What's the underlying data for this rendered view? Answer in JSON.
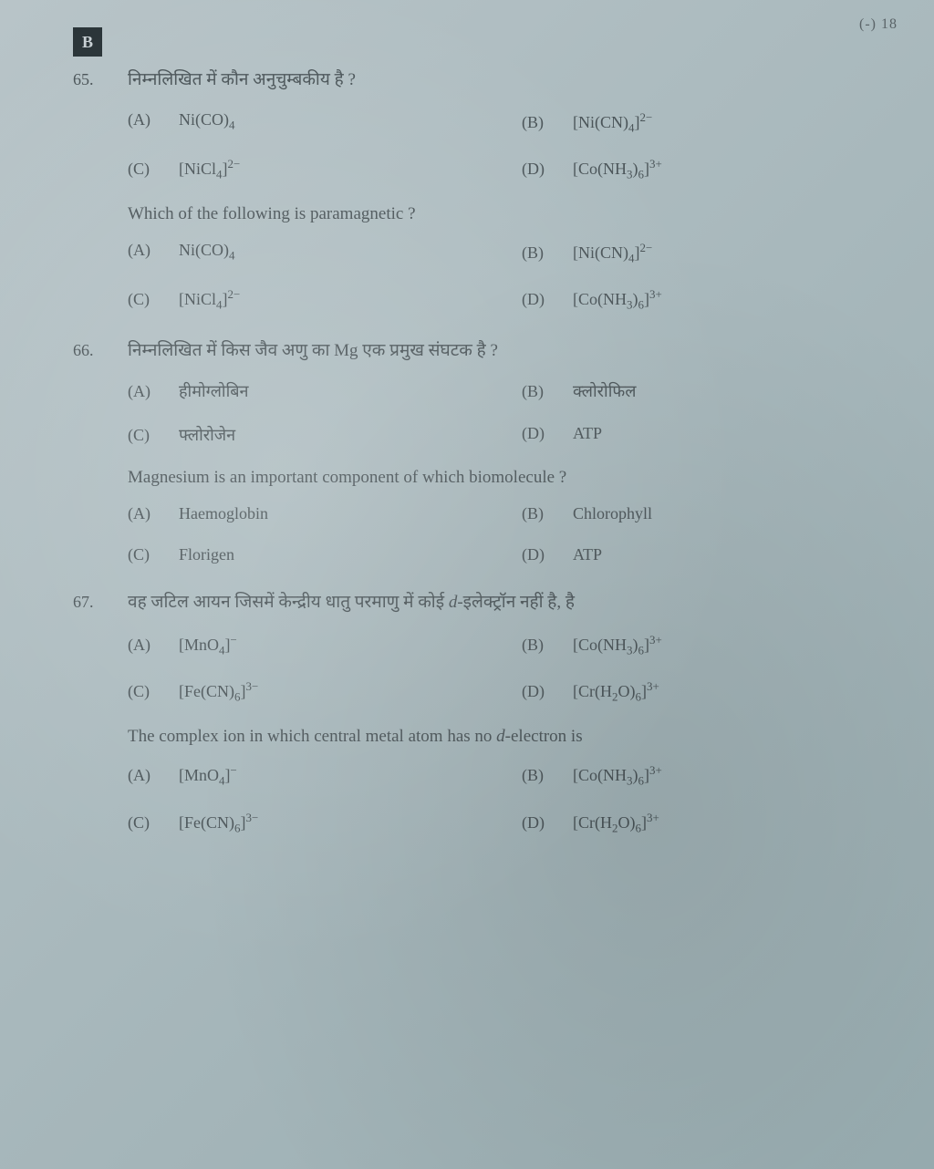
{
  "page_number": "(-) 18",
  "badge": "B",
  "questions": [
    {
      "num": "65.",
      "text_hi": "निम्नलिखित में कौन अनुचुम्बकीय है ?",
      "options_set1": [
        {
          "label": "(A)",
          "html": "Ni(CO)<sub>4</sub>"
        },
        {
          "label": "(B)",
          "html": "[Ni(CN)<sub>4</sub>]<sup>2−</sup>"
        },
        {
          "label": "(C)",
          "html": "[NiCl<sub>4</sub>]<sup>2−</sup>"
        },
        {
          "label": "(D)",
          "html": "[Co(NH<sub>3</sub>)<sub>6</sub>]<sup>3+</sup>"
        }
      ],
      "text_en": "Which of the following is paramagnetic ?",
      "options_set2": [
        {
          "label": "(A)",
          "html": "Ni(CO)<sub>4</sub>"
        },
        {
          "label": "(B)",
          "html": "[Ni(CN)<sub>4</sub>]<sup>2−</sup>"
        },
        {
          "label": "(C)",
          "html": "[NiCl<sub>4</sub>]<sup>2−</sup>"
        },
        {
          "label": "(D)",
          "html": "[Co(NH<sub>3</sub>)<sub>6</sub>]<sup>3+</sup>"
        }
      ]
    },
    {
      "num": "66.",
      "text_hi": "निम्नलिखित में किस जैव अणु का Mg एक प्रमुख संघटक है ?",
      "options_set1": [
        {
          "label": "(A)",
          "html": "हीमोग्लोबिन"
        },
        {
          "label": "(B)",
          "html": "क्लोरोफिल"
        },
        {
          "label": "(C)",
          "html": "फ्लोरोजेन"
        },
        {
          "label": "(D)",
          "html": "ATP"
        }
      ],
      "text_en": "Magnesium is an important component of which biomolecule ?",
      "options_set2": [
        {
          "label": "(A)",
          "html": "Haemoglobin"
        },
        {
          "label": "(B)",
          "html": "Chlorophyll"
        },
        {
          "label": "(C)",
          "html": "Florigen"
        },
        {
          "label": "(D)",
          "html": "ATP"
        }
      ]
    },
    {
      "num": "67.",
      "text_hi": "वह जटिल आयन जिसमें केन्द्रीय धातु परमाणु में कोई <i>d</i>-इलेक्ट्रॉन नहीं है, है",
      "options_set1": [
        {
          "label": "(A)",
          "html": "[MnO<sub>4</sub>]<sup>−</sup>"
        },
        {
          "label": "(B)",
          "html": "[Co(NH<sub>3</sub>)<sub>6</sub>]<sup>3+</sup>"
        },
        {
          "label": "(C)",
          "html": "[Fe(CN)<sub>6</sub>]<sup>3−</sup>"
        },
        {
          "label": "(D)",
          "html": "[Cr(H<sub>2</sub>O)<sub>6</sub>]<sup>3+</sup>"
        }
      ],
      "text_en": "The complex ion in which central metal atom has no <i>d</i>-electron is",
      "options_set2": [
        {
          "label": "(A)",
          "html": "[MnO<sub>4</sub>]<sup>−</sup>"
        },
        {
          "label": "(B)",
          "html": "[Co(NH<sub>3</sub>)<sub>6</sub>]<sup>3+</sup>"
        },
        {
          "label": "(C)",
          "html": "[Fe(CN)<sub>6</sub>]<sup>3−</sup>"
        },
        {
          "label": "(D)",
          "html": "[Cr(H<sub>2</sub>O)<sub>6</sub>]<sup>3+</sup>"
        }
      ]
    }
  ],
  "colors": {
    "bg_start": "#b8c4c8",
    "bg_end": "#98acb0",
    "text": "#4a5458",
    "badge_bg": "#2a3438",
    "badge_fg": "#c8d0d4"
  },
  "typography": {
    "body_fontsize": 19,
    "option_fontsize": 18,
    "font_family": "Times New Roman"
  }
}
